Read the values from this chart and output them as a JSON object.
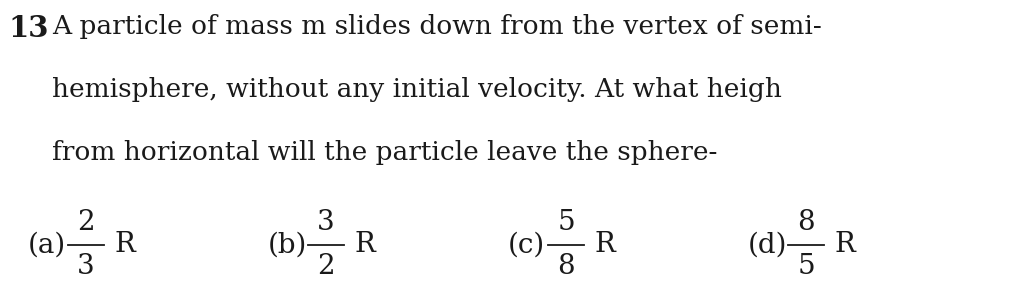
{
  "background_color": "#ffffff",
  "text_color": "#1a1a1a",
  "question_number": "13",
  "line1": "A particle of mass m slides down from the vertex of semi-",
  "line2": "hemisphere, without any initial velocity. At what heigh",
  "line3": "from horizontal will the particle leave the sphere-",
  "options": [
    {
      "label": "(a)",
      "num": "2",
      "den": "3",
      "var": "R"
    },
    {
      "label": "(b)",
      "num": "3",
      "den": "2",
      "var": "R"
    },
    {
      "label": "(c)",
      "num": "5",
      "den": "8",
      "var": "R"
    },
    {
      "label": "(d)",
      "num": "8",
      "den": "5",
      "var": "R"
    }
  ],
  "font_size_text": 19,
  "font_size_options": 20,
  "font_family": "DejaVu Serif"
}
